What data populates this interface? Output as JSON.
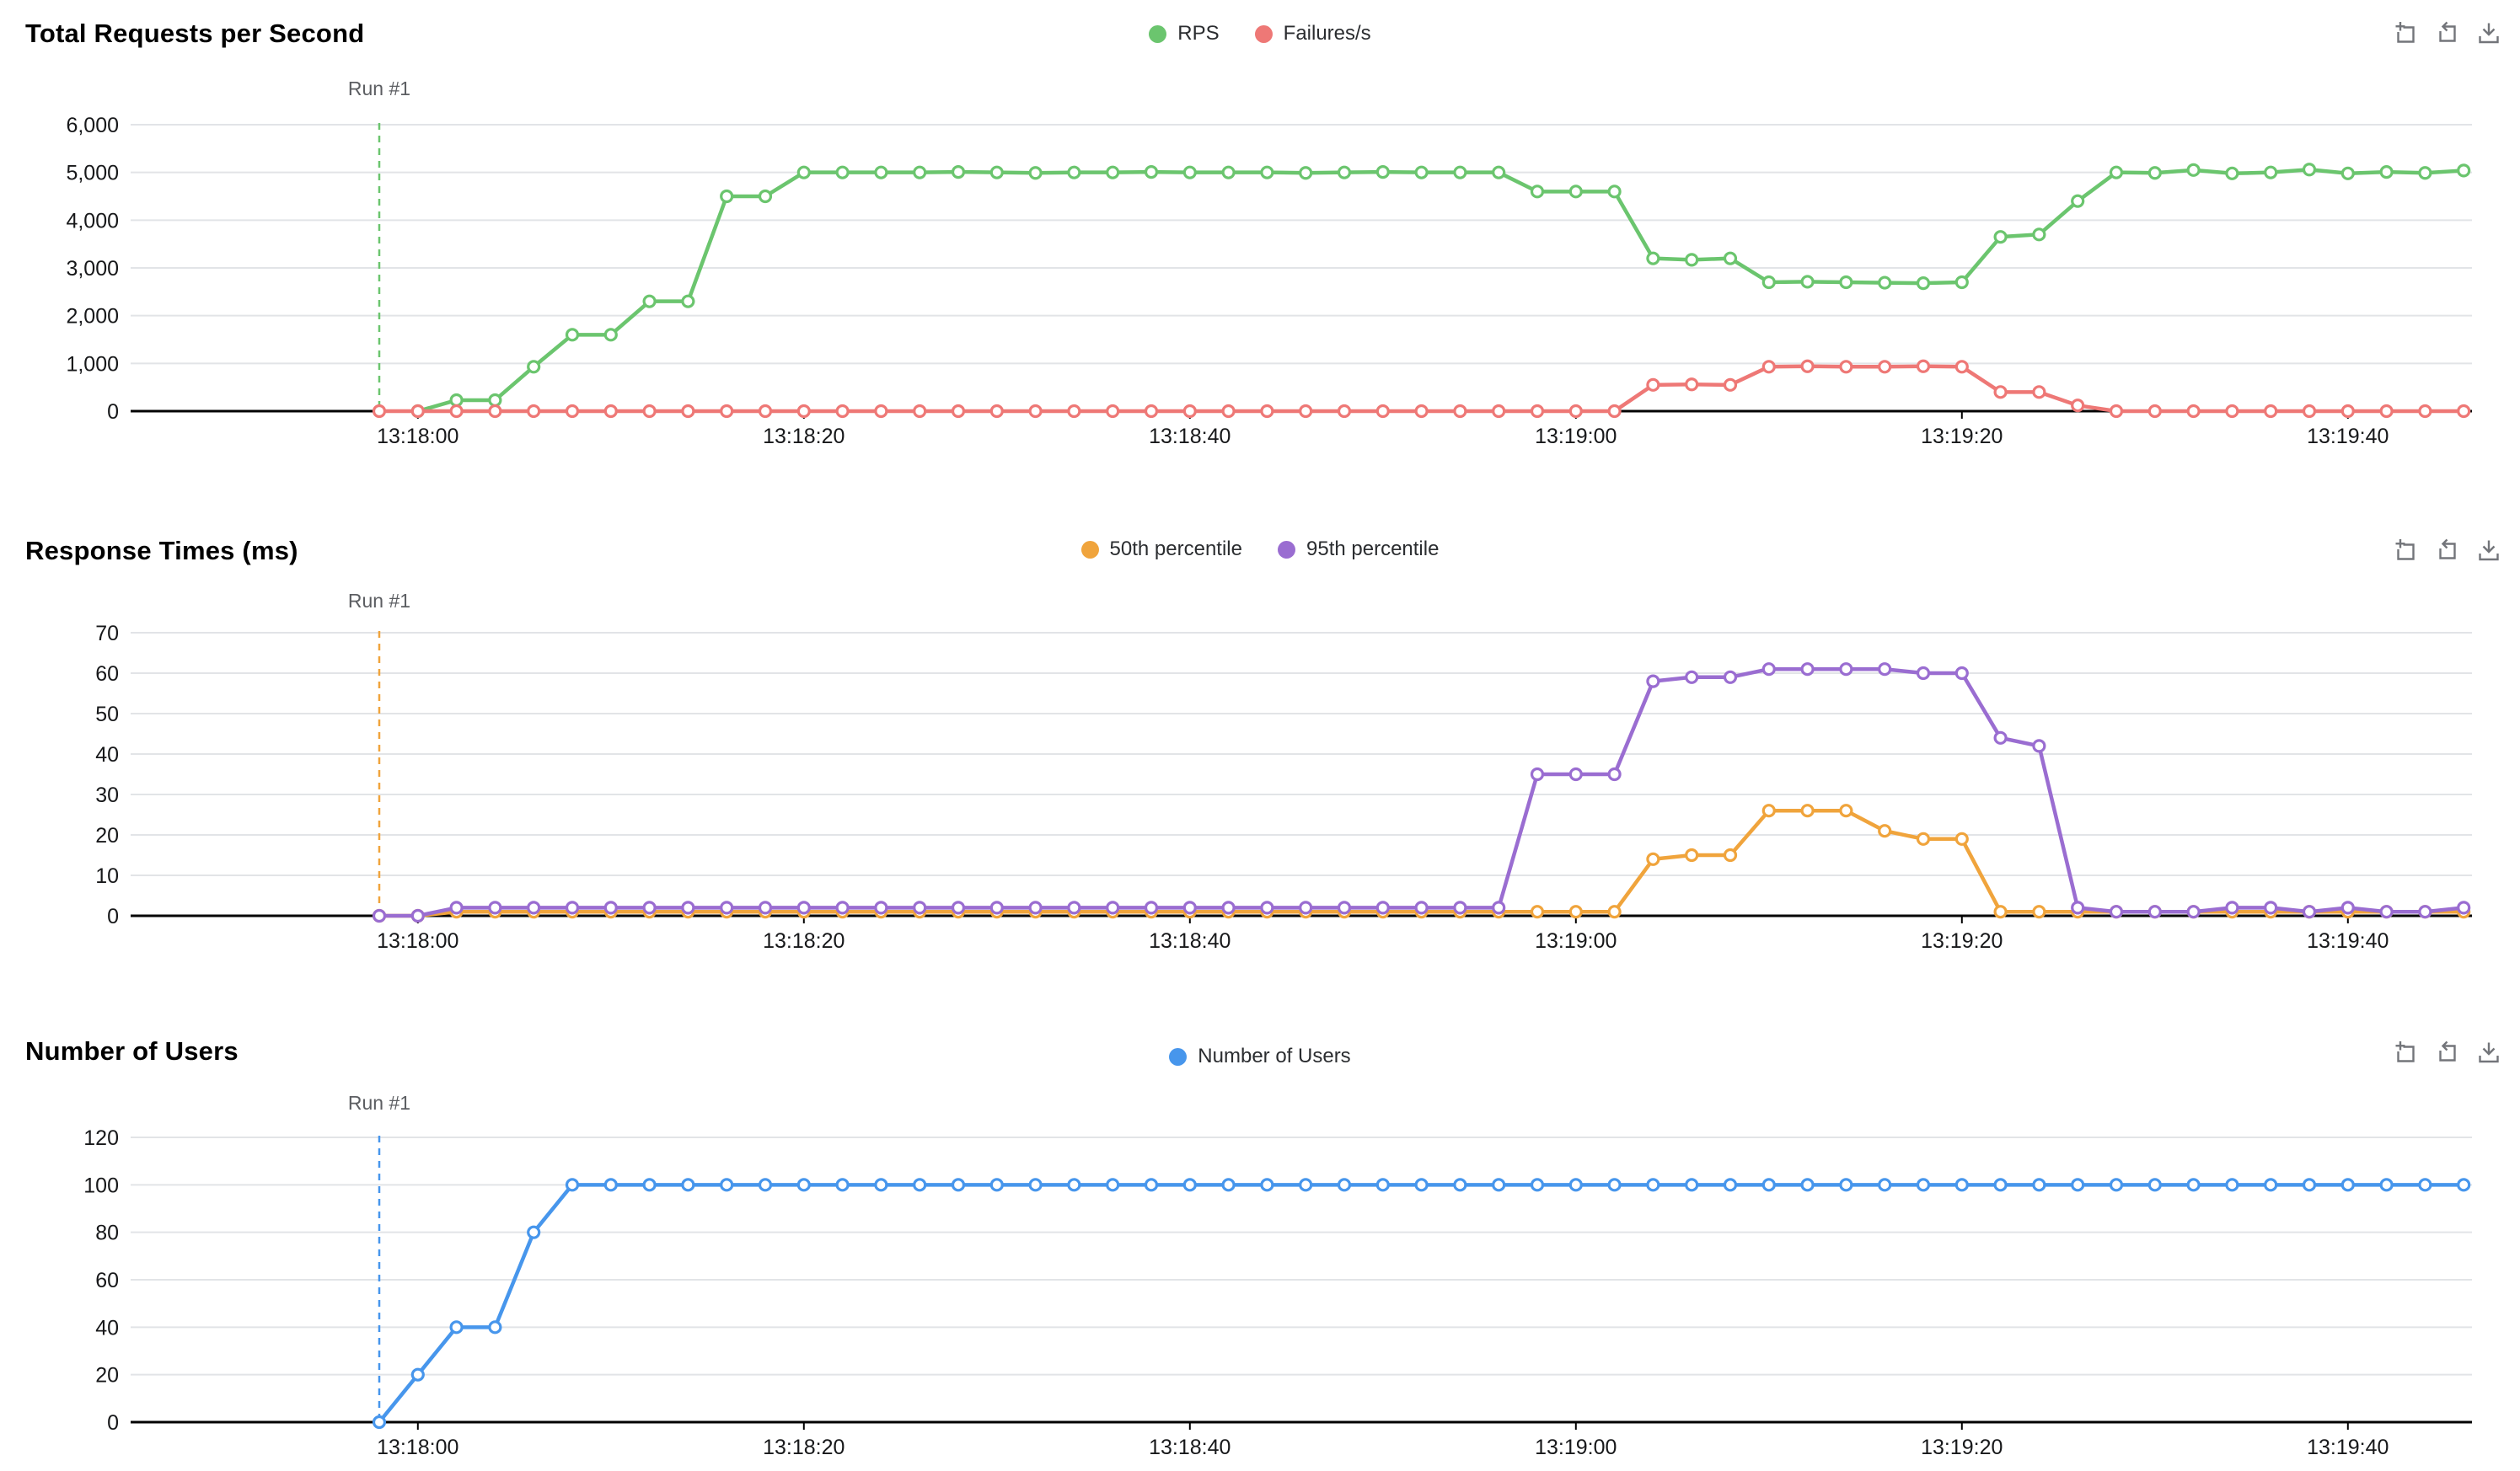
{
  "page": {
    "background": "#ffffff"
  },
  "run_marker_label": "Run #1",
  "toolbox": {
    "color": "#73757a",
    "buttons": [
      {
        "name": "zoom-select",
        "icon": "zoom-select-icon"
      },
      {
        "name": "restore",
        "icon": "restore-icon"
      },
      {
        "name": "save-image",
        "icon": "download-icon"
      }
    ]
  },
  "style": {
    "grid_color": "#e2e4e7",
    "axis_color": "#000000",
    "tick_label_color": "#17181a",
    "run_label_color": "#5c5e62"
  },
  "chart_data": [
    {
      "type": "line",
      "title": "Total Requests per Second",
      "x_unit": "time",
      "x_start": "13:17:58",
      "x_step_seconds": 2,
      "x_tick_labels": [
        "13:18:00",
        "13:18:20",
        "13:18:40",
        "13:19:00",
        "13:19:20",
        "13:19:40"
      ],
      "x_tick_offsets_s": [
        2,
        22,
        42,
        62,
        82,
        102
      ],
      "ylim": [
        0,
        6000
      ],
      "y_tick_labels": [
        "0",
        "1,000",
        "2,000",
        "3,000",
        "4,000",
        "5,000",
        "6,000"
      ],
      "grid": true,
      "legend_position": "top-center",
      "run_marker": {
        "label": "Run #1",
        "offset_s": 0,
        "color": "#6bc56e"
      },
      "series": [
        {
          "name": "RPS",
          "color": "#6bc56e",
          "values": [
            null,
            0,
            230,
            230,
            930,
            1600,
            1600,
            2300,
            2300,
            4500,
            4500,
            5000,
            5000,
            5000,
            5000,
            5010,
            5000,
            4990,
            5000,
            5000,
            5010,
            5000,
            5000,
            5000,
            4990,
            5000,
            5010,
            5000,
            5000,
            5000,
            4600,
            4600,
            4600,
            3200,
            3170,
            3200,
            2700,
            2710,
            2700,
            2690,
            2680,
            2700,
            3650,
            3700,
            4400,
            5000,
            4990,
            5050,
            4980,
            5000,
            5060,
            4980,
            5010,
            4990,
            5040
          ]
        },
        {
          "name": "Failures/s",
          "color": "#ee7876",
          "values": [
            0,
            0,
            0,
            0,
            0,
            0,
            0,
            0,
            0,
            0,
            0,
            0,
            0,
            0,
            0,
            0,
            0,
            0,
            0,
            0,
            0,
            0,
            0,
            0,
            0,
            0,
            0,
            0,
            0,
            0,
            0,
            0,
            0,
            550,
            560,
            550,
            930,
            940,
            930,
            930,
            940,
            930,
            400,
            400,
            120,
            0,
            0,
            0,
            0,
            0,
            0,
            0,
            0,
            0,
            0
          ]
        }
      ]
    },
    {
      "type": "line",
      "title": "Response Times (ms)",
      "x_unit": "time",
      "x_start": "13:17:58",
      "x_step_seconds": 2,
      "x_tick_labels": [
        "13:18:00",
        "13:18:20",
        "13:18:40",
        "13:19:00",
        "13:19:20",
        "13:19:40"
      ],
      "x_tick_offsets_s": [
        2,
        22,
        42,
        62,
        82,
        102
      ],
      "ylim": [
        0,
        70
      ],
      "y_tick_labels": [
        "0",
        "10",
        "20",
        "30",
        "40",
        "50",
        "60",
        "70"
      ],
      "grid": true,
      "legend_position": "top-center",
      "run_marker": {
        "label": "Run #1",
        "offset_s": 0,
        "color": "#f0a43c"
      },
      "series": [
        {
          "name": "50th percentile",
          "color": "#f0a43c",
          "values": [
            0,
            0,
            1,
            1,
            1,
            1,
            1,
            1,
            1,
            1,
            1,
            1,
            1,
            1,
            1,
            1,
            1,
            1,
            1,
            1,
            1,
            1,
            1,
            1,
            1,
            1,
            1,
            1,
            1,
            1,
            1,
            1,
            1,
            14,
            15,
            15,
            26,
            26,
            26,
            21,
            19,
            19,
            1,
            1,
            1,
            1,
            1,
            1,
            1,
            1,
            1,
            1,
            1,
            1,
            1
          ]
        },
        {
          "name": "95th percentile",
          "color": "#9a6dd1",
          "values": [
            0,
            0,
            2,
            2,
            2,
            2,
            2,
            2,
            2,
            2,
            2,
            2,
            2,
            2,
            2,
            2,
            2,
            2,
            2,
            2,
            2,
            2,
            2,
            2,
            2,
            2,
            2,
            2,
            2,
            2,
            35,
            35,
            35,
            58,
            59,
            59,
            61,
            61,
            61,
            61,
            60,
            60,
            44,
            42,
            2,
            1,
            1,
            1,
            2,
            2,
            1,
            2,
            1,
            1,
            2
          ]
        }
      ]
    },
    {
      "type": "line",
      "title": "Number of Users",
      "x_unit": "time",
      "x_start": "13:17:58",
      "x_step_seconds": 2,
      "x_tick_labels": [
        "13:18:00",
        "13:18:20",
        "13:18:40",
        "13:19:00",
        "13:19:20",
        "13:19:40"
      ],
      "x_tick_offsets_s": [
        2,
        22,
        42,
        62,
        82,
        102
      ],
      "ylim": [
        0,
        120
      ],
      "y_tick_labels": [
        "0",
        "20",
        "40",
        "60",
        "80",
        "100",
        "120"
      ],
      "grid": true,
      "legend_position": "top-center",
      "run_marker": {
        "label": "Run #1",
        "offset_s": 0,
        "color": "#4796ec"
      },
      "series": [
        {
          "name": "Number of Users",
          "color": "#4796ec",
          "values": [
            0,
            20,
            40,
            40,
            80,
            100,
            100,
            100,
            100,
            100,
            100,
            100,
            100,
            100,
            100,
            100,
            100,
            100,
            100,
            100,
            100,
            100,
            100,
            100,
            100,
            100,
            100,
            100,
            100,
            100,
            100,
            100,
            100,
            100,
            100,
            100,
            100,
            100,
            100,
            100,
            100,
            100,
            100,
            100,
            100,
            100,
            100,
            100,
            100,
            100,
            100,
            100,
            100,
            100,
            100
          ]
        }
      ]
    }
  ]
}
